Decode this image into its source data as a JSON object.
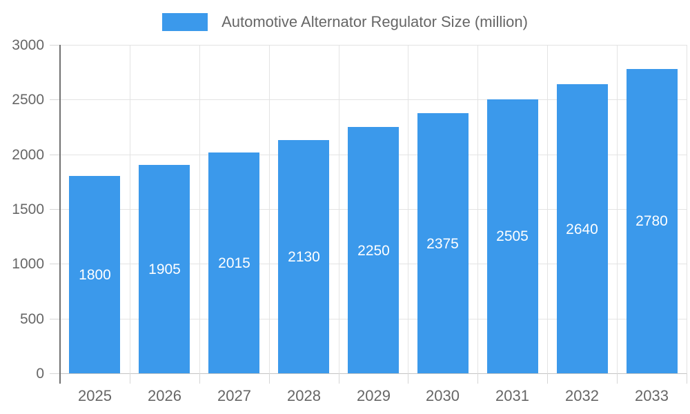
{
  "chart_data": {
    "type": "bar",
    "title": "Automotive Alternator Regulator Size (million)",
    "categories": [
      "2025",
      "2026",
      "2027",
      "2028",
      "2029",
      "2030",
      "2031",
      "2032",
      "2033"
    ],
    "values": [
      1800,
      1905,
      2015,
      2130,
      2250,
      2375,
      2505,
      2640,
      2780
    ],
    "xlabel": "",
    "ylabel": "",
    "ylim": [
      0,
      3000
    ],
    "yticks": [
      0,
      500,
      1000,
      1500,
      2000,
      2500,
      3000
    ],
    "grid": true,
    "legend_position": "top-center",
    "value_labels": "inside-center-white",
    "colors": {
      "bar": "#3B99EB",
      "value_label": "#FFFFFF",
      "axis_text": "#666666",
      "gridline": "#E3E3E3",
      "tick": "#D6D6D6",
      "axis_line": "#707070",
      "baseline": "#C4C4C4",
      "background": "#FFFFFF"
    }
  }
}
